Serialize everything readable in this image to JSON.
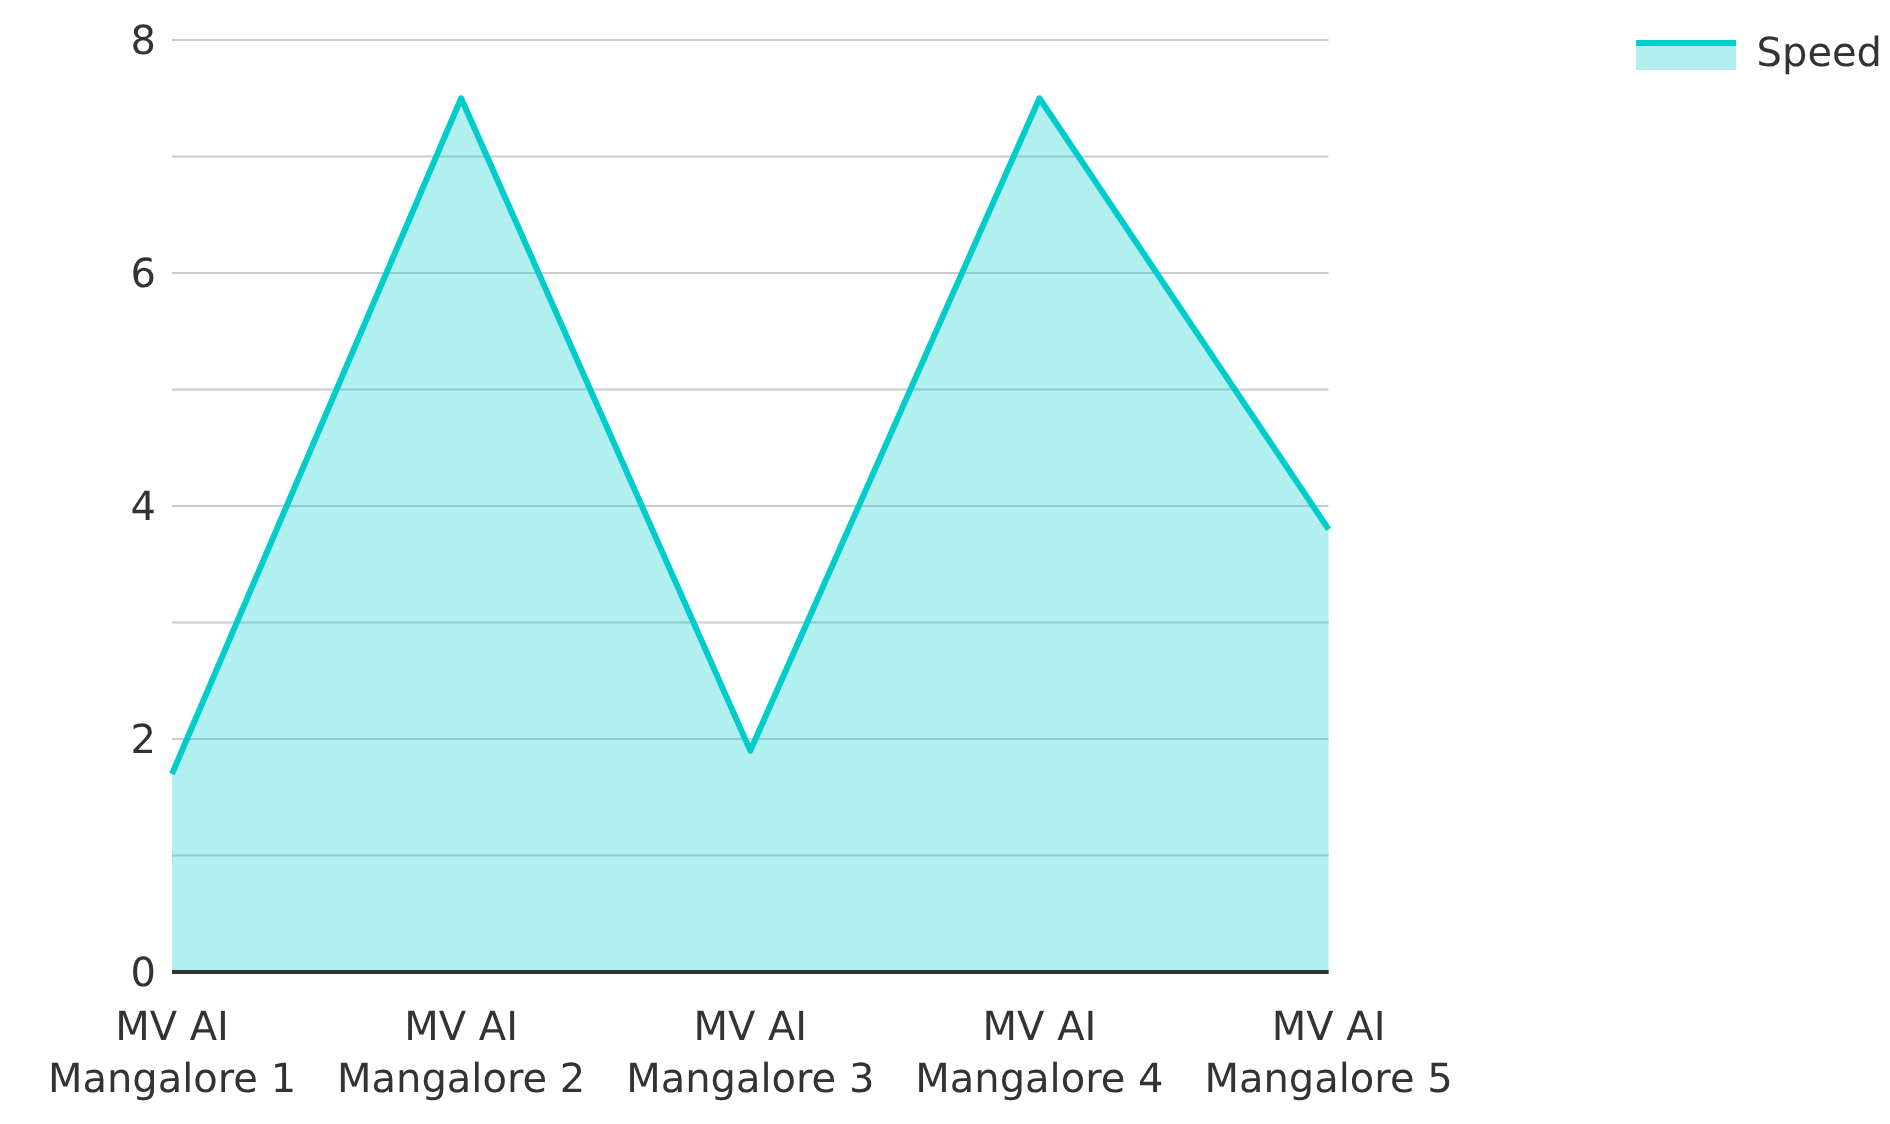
{
  "chart_data": {
    "type": "area",
    "categories": [
      "MV AI Mangalore 1",
      "MV AI Mangalore 2",
      "MV AI Mangalore 3",
      "MV AI Mangalore 4",
      "MV AI Mangalore 5"
    ],
    "series": [
      {
        "name": "Speed",
        "color": "#00cccc",
        "values": [
          1.7,
          7.5,
          1.9,
          7.5,
          3.8
        ]
      }
    ],
    "ylim": [
      0,
      8
    ],
    "yticks": [
      0,
      {
        "value": 1,
        "label": null
      },
      2,
      {
        "value": 3,
        "label": null
      },
      4,
      {
        "value": 5,
        "label": null
      },
      6,
      {
        "value": 7,
        "label": null
      },
      8
    ],
    "grid": "y",
    "legend": "top right"
  }
}
